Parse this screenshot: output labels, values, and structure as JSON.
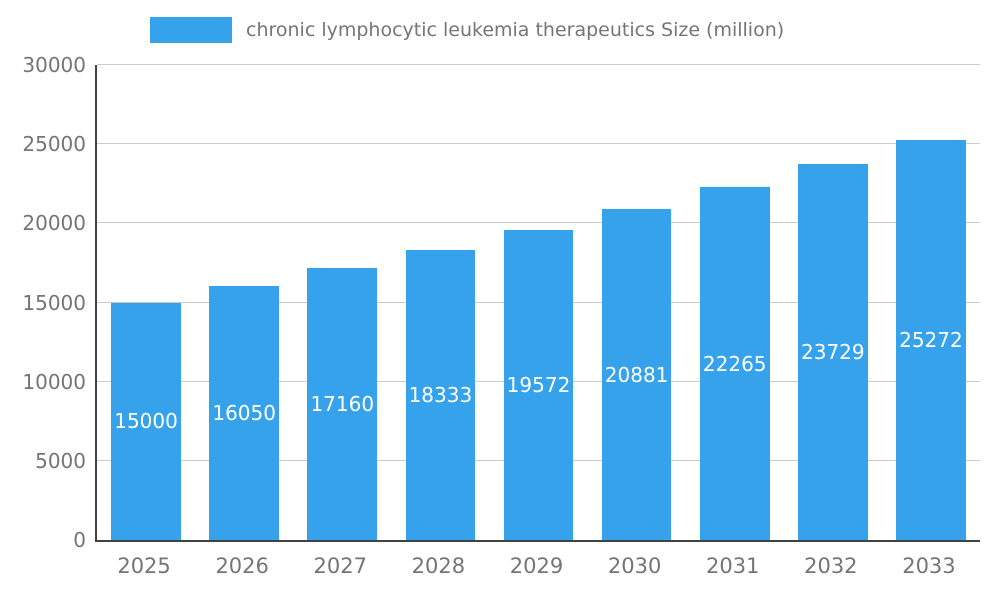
{
  "chart_data": {
    "type": "bar",
    "title": "chronic lymphocytic leukemia therapeutics Size (million)",
    "categories": [
      "2025",
      "2026",
      "2027",
      "2028",
      "2029",
      "2030",
      "2031",
      "2032",
      "2033"
    ],
    "values": [
      15000,
      16050,
      17160,
      18333,
      19572,
      20881,
      22265,
      23729,
      25272
    ],
    "xlabel": "",
    "ylabel": "",
    "ylim": [
      0,
      30000
    ],
    "yticks": [
      0,
      5000,
      10000,
      15000,
      20000,
      25000,
      30000
    ],
    "grid": true,
    "legend_position": "top",
    "bar_color": "#36A2EB",
    "value_label_color": "#ffffff",
    "axis_label_color": "#757575",
    "gridline_color": "#cccccc",
    "axis_line_color": "#424242"
  }
}
